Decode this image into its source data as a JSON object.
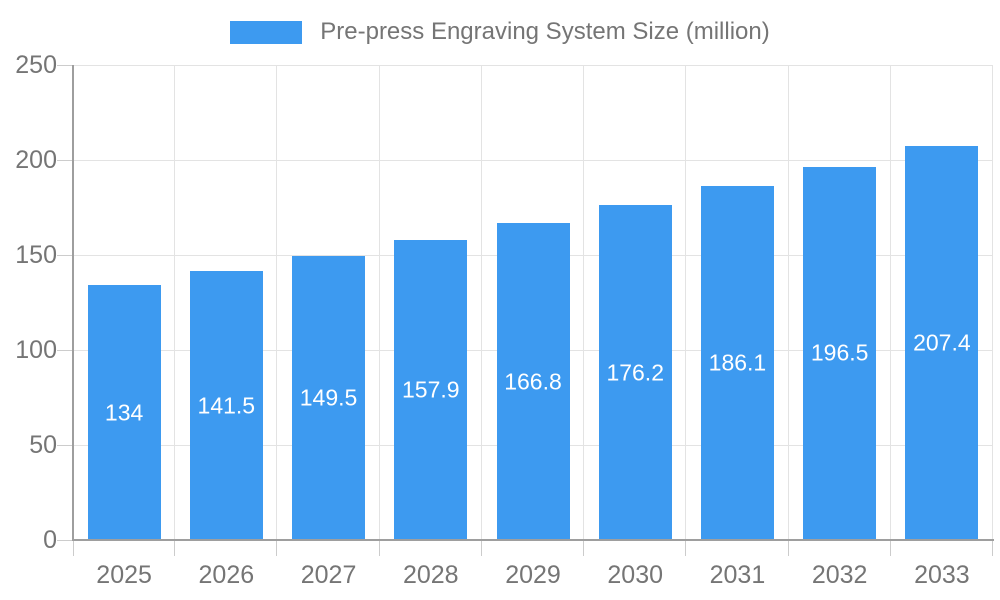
{
  "legend": {
    "label": "Pre-press Engraving System Size (million)"
  },
  "chart_data": {
    "type": "bar",
    "title": "",
    "xlabel": "",
    "ylabel": "",
    "categories": [
      "2025",
      "2026",
      "2027",
      "2028",
      "2029",
      "2030",
      "2031",
      "2032",
      "2033"
    ],
    "values": [
      134,
      141.5,
      149.5,
      157.9,
      166.8,
      176.2,
      186.1,
      196.5,
      207.4
    ],
    "series_name": "Pre-press Engraving System Size (million)",
    "ylim": [
      0,
      250
    ],
    "yticks": [
      0,
      50,
      100,
      150,
      200,
      250
    ],
    "grid": true,
    "legend_position": "top-center",
    "colors": {
      "bar": "#3d9af0",
      "value_label": "#ffffff",
      "axis_label": "#757575",
      "legend_label": "#757575",
      "axis_line": "#9e9e9e",
      "gridline": "#e3e3e3",
      "tick": "#cccccc"
    }
  }
}
